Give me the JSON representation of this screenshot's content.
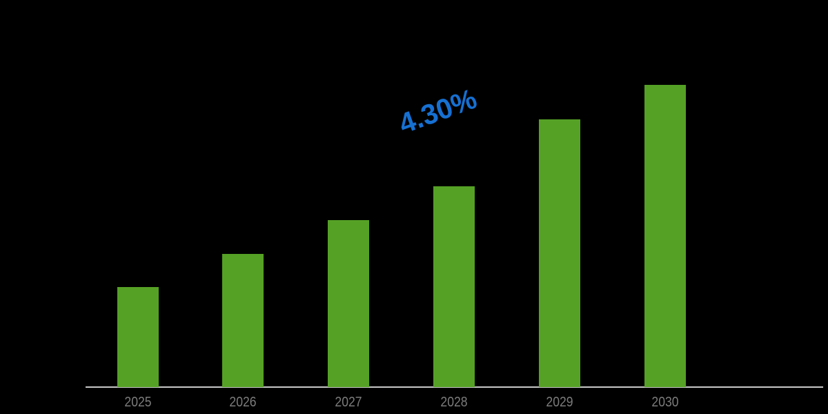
{
  "chart_data": {
    "type": "bar",
    "title": "",
    "categories": [
      "2025",
      "2026",
      "2027",
      "2028",
      "2029",
      "2030"
    ],
    "values_pct_of_max": [
      33.1,
      44.1,
      55.3,
      66.4,
      88.6,
      100
    ],
    "annotation": {
      "text": "4.30%"
    },
    "xlabel": "",
    "ylabel": "",
    "y_axis_visible": false,
    "gridlines": false,
    "legend": "none",
    "colors": {
      "background": "#000000",
      "bar": "#55a125",
      "annotation_text": "#1670d2",
      "axis_line": "#c9c9c9",
      "tick_label": "#7c7c7c"
    }
  }
}
